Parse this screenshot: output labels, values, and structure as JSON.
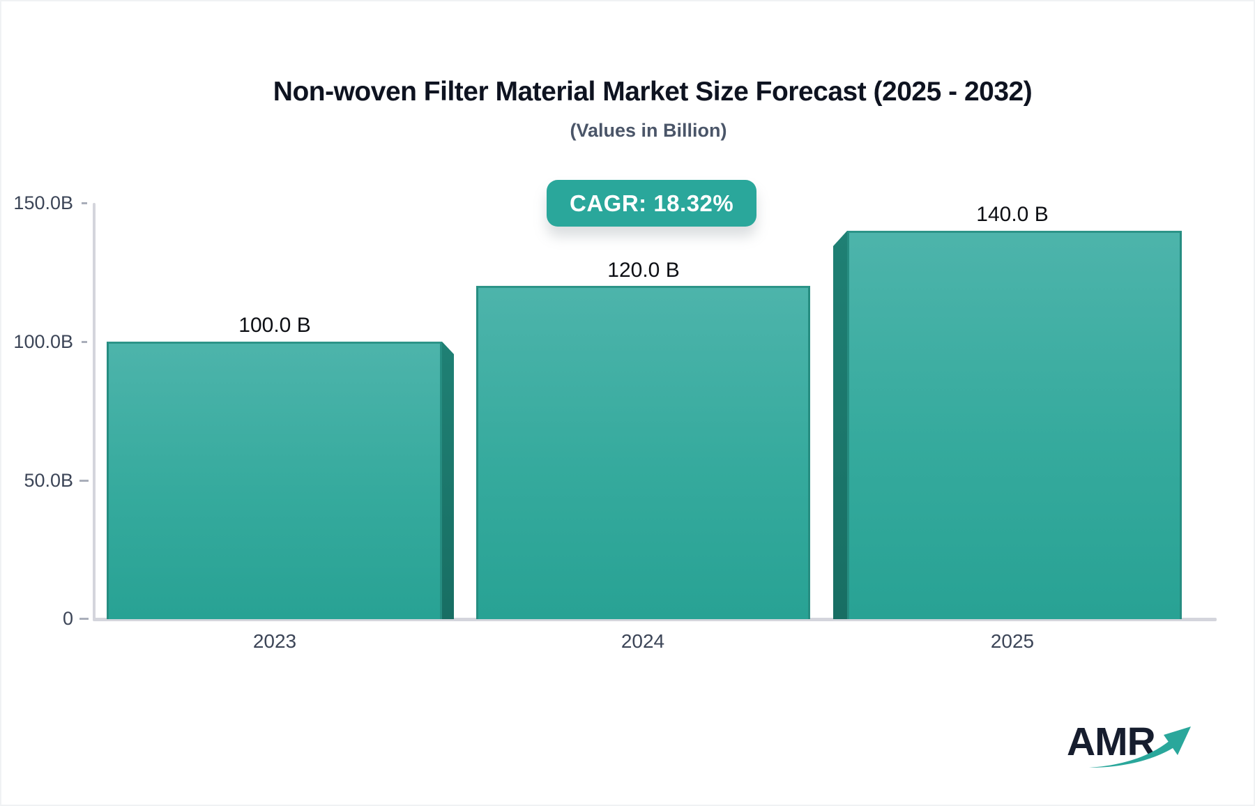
{
  "header": {
    "title": "Non-woven Filter Material Market Size Forecast (2025 - 2032)",
    "subtitle": "(Values in Billion)"
  },
  "badge": {
    "label": "CAGR: 18.32%",
    "bg_color": "#2aa79b"
  },
  "chart_data": {
    "type": "bar",
    "title": "Non-woven Filter Material Market Size Forecast (2025 - 2032)",
    "subtitle": "(Values in Billion)",
    "categories": [
      "2023",
      "2024",
      "2025"
    ],
    "values": [
      100.0,
      120.0,
      140.0
    ],
    "value_labels": [
      "100.0 B",
      "120.0 B",
      "140.0 B"
    ],
    "unit": "Billion",
    "cagr_percent": 18.32,
    "xlabel": "",
    "ylabel": "",
    "ylim": [
      0,
      150
    ],
    "ytick_values": [
      0,
      50,
      100,
      150
    ],
    "yticks": [
      "0",
      "50.0B",
      "100.0B",
      "150.0B"
    ],
    "grid": false,
    "legend_position": "none",
    "bar_color_top": "#4db4ab",
    "bar_color_bottom": "#28a294",
    "bar_side_color": "#1f8074",
    "axis_color": "#d4d5dc"
  },
  "logo": {
    "text": "AMR",
    "arrow_color": "#2aa79b",
    "text_color": "#161d2e"
  }
}
